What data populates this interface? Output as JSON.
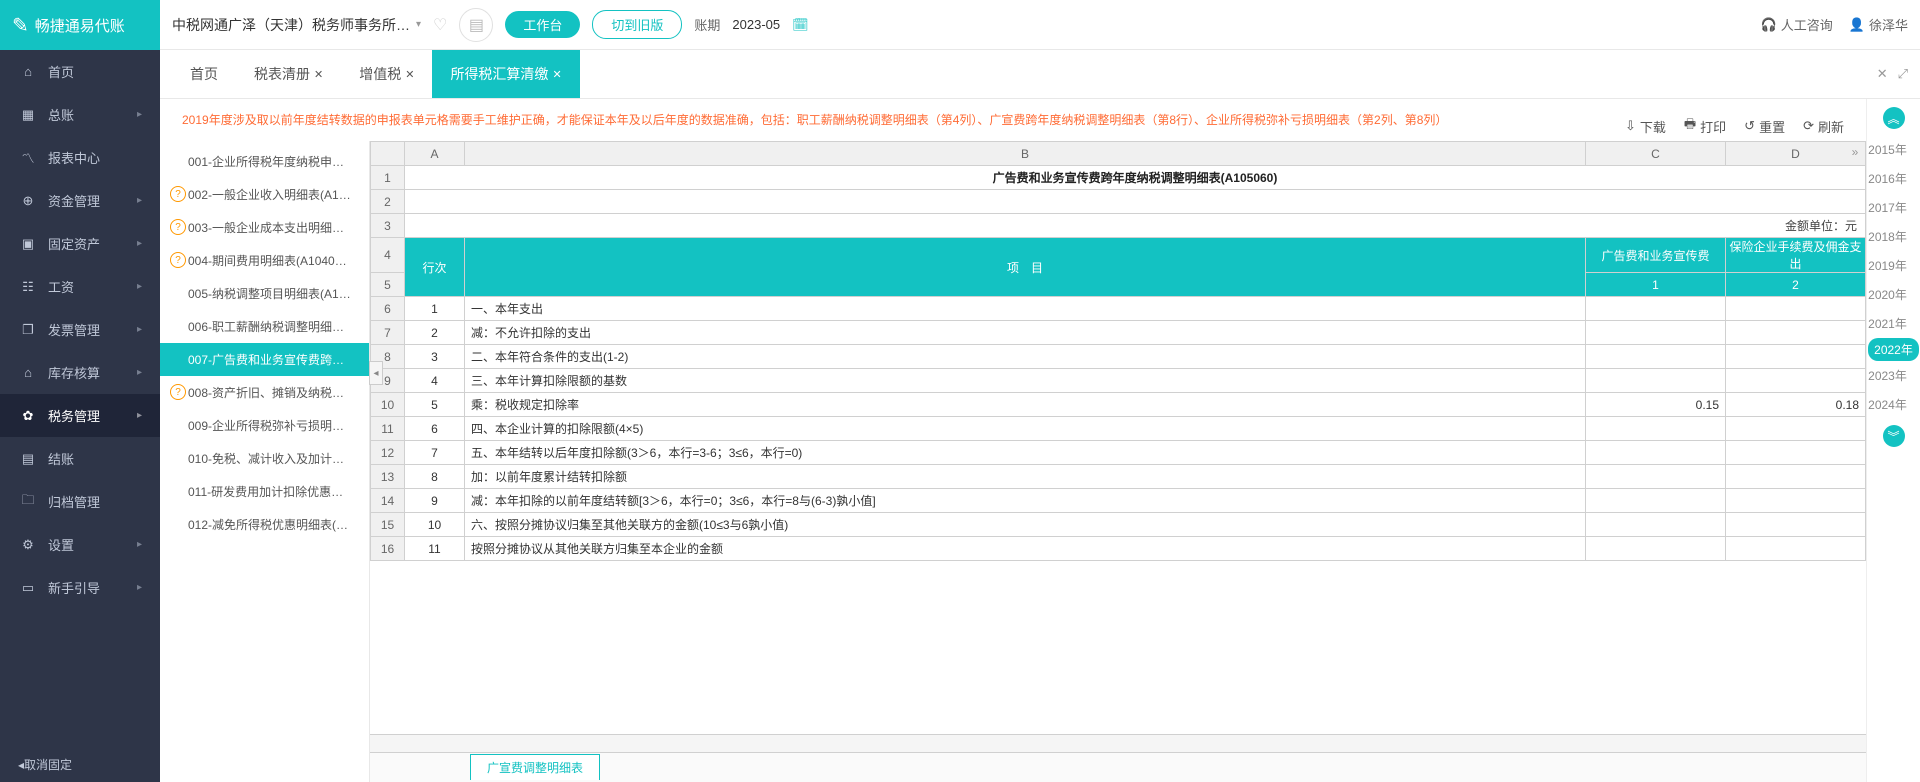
{
  "brand": "畅捷通易代账",
  "sidebar": {
    "items": [
      {
        "icon": "⌂",
        "label": "首页",
        "arrow": false
      },
      {
        "icon": "▦",
        "label": "总账",
        "arrow": true
      },
      {
        "icon": "〽",
        "label": "报表中心",
        "arrow": false
      },
      {
        "icon": "⊕",
        "label": "资金管理",
        "arrow": true
      },
      {
        "icon": "▣",
        "label": "固定资产",
        "arrow": true
      },
      {
        "icon": "☷",
        "label": "工资",
        "arrow": true
      },
      {
        "icon": "❐",
        "label": "发票管理",
        "arrow": true
      },
      {
        "icon": "⌂",
        "label": "库存核算",
        "arrow": true
      },
      {
        "icon": "✿",
        "label": "税务管理",
        "arrow": true,
        "active": true
      },
      {
        "icon": "▤",
        "label": "结账",
        "arrow": false
      },
      {
        "icon": "🗀",
        "label": "归档管理",
        "arrow": false
      },
      {
        "icon": "⚙",
        "label": "设置",
        "arrow": true
      },
      {
        "icon": "▭",
        "label": "新手引导",
        "arrow": true
      }
    ],
    "unpin": "◂取消固定"
  },
  "topbar": {
    "company": "中税网通广泽（天津）税务师事务所…",
    "workspace": "工作台",
    "switch_old": "切到旧版",
    "period_label": "账期",
    "period_value": "2023-05",
    "support": "人工咨询",
    "user": "徐泽华"
  },
  "tabs": [
    {
      "label": "首页",
      "closable": false
    },
    {
      "label": "税表清册",
      "closable": true
    },
    {
      "label": "增值税",
      "closable": true
    },
    {
      "label": "所得税汇算清缴",
      "closable": true,
      "active": true
    }
  ],
  "notice": "2019年度涉及取以前年度结转数据的申报表单元格需要手工维护正确，才能保证本年及以后年度的数据准确，包括：职工薪酬纳税调整明细表（第4列）、广宣费跨年度纳税调整明细表（第8行）、企业所得税弥补亏损明细表（第2列、第8列）",
  "toolbar": {
    "download": "下载",
    "print": "打印",
    "reset": "重置",
    "refresh": "刷新"
  },
  "form_list": [
    {
      "label": "001-企业所得税年度纳税申…"
    },
    {
      "label": "002-一般企业收入明细表(A1…",
      "q": true
    },
    {
      "label": "003-一般企业成本支出明细…",
      "q": true
    },
    {
      "label": "004-期间费用明细表(A1040…",
      "q": true
    },
    {
      "label": "005-纳税调整项目明细表(A1…"
    },
    {
      "label": "006-职工薪酬纳税调整明细…"
    },
    {
      "label": "007-广告费和业务宣传费跨…",
      "active": true
    },
    {
      "label": "008-资产折旧、摊销及纳税…",
      "q": true
    },
    {
      "label": "009-企业所得税弥补亏损明…"
    },
    {
      "label": "010-免税、减计收入及加计…"
    },
    {
      "label": "011-研发费用加计扣除优惠…"
    },
    {
      "label": "012-减免所得税优惠明细表(…"
    }
  ],
  "sheet": {
    "columns": [
      "A",
      "B",
      "C",
      "D"
    ],
    "title": "广告费和业务宣传费跨年度纳税调整明细表(A105060)",
    "unit": "金额单位：元",
    "header": {
      "seq": "行次",
      "item": "项　目",
      "col1": "广告费和业务宣传费",
      "col2": "保险企业手续费及佣金支出",
      "sub1": "1",
      "sub2": "2"
    },
    "rows": [
      {
        "r": 6,
        "seq": "1",
        "item": "一、本年支出"
      },
      {
        "r": 7,
        "seq": "2",
        "item": "减：不允许扣除的支出"
      },
      {
        "r": 8,
        "seq": "3",
        "item": "二、本年符合条件的支出(1-2)"
      },
      {
        "r": 9,
        "seq": "4",
        "item": "三、本年计算扣除限额的基数"
      },
      {
        "r": 10,
        "seq": "5",
        "item": "乘：税收规定扣除率",
        "v1": "0.15",
        "v2": "0.18"
      },
      {
        "r": 11,
        "seq": "6",
        "item": "四、本企业计算的扣除限额(4×5)"
      },
      {
        "r": 12,
        "seq": "7",
        "item": "五、本年结转以后年度扣除额(3＞6，本行=3-6；3≤6，本行=0)"
      },
      {
        "r": 13,
        "seq": "8",
        "item": "加：以前年度累计结转扣除额"
      },
      {
        "r": 14,
        "seq": "9",
        "item": "减：本年扣除的以前年度结转额[3＞6，本行=0；3≤6，本行=8与(6-3)孰小值]",
        "tall": true
      },
      {
        "r": 15,
        "seq": "10",
        "item": "六、按照分摊协议归集至其他关联方的金额(10≤3与6孰小值)"
      },
      {
        "r": 16,
        "seq": "11",
        "item": "按照分摊协议从其他关联方归集至本企业的金额"
      }
    ],
    "tab": "广宣费调整明细表"
  },
  "years": [
    "2015年",
    "2016年",
    "2017年",
    "2018年",
    "2019年",
    "2020年",
    "2021年",
    "2022年",
    "2023年",
    "2024年"
  ],
  "active_year": "2022年"
}
